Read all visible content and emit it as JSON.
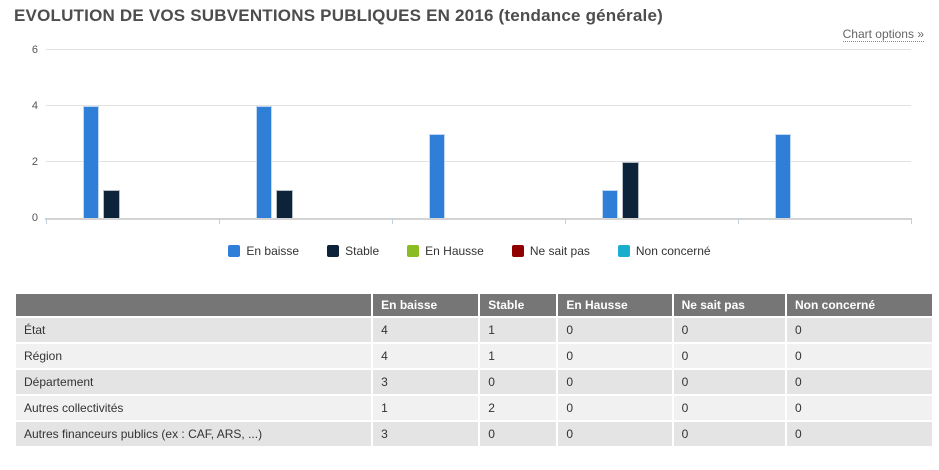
{
  "header": {
    "title": "EVOLUTION DE VOS SUBVENTIONS PUBLIQUES EN 2016 (tendance générale)",
    "chart_options_label": "Chart options »"
  },
  "colors": {
    "en_baisse": "#2f7ed8",
    "stable": "#0d233a",
    "en_hausse": "#8bbc21",
    "ne_sait_pas": "#910000",
    "non_concerne": "#1aadce",
    "table_header_bg": "#767676",
    "row_odd_bg": "#e4e4e4",
    "row_even_bg": "#f1f1f1"
  },
  "chart_data": {
    "type": "bar",
    "title": "EVOLUTION DE VOS SUBVENTIONS PUBLIQUES EN 2016 (tendance générale)",
    "categories": [
      "État",
      "Région",
      "Département",
      "Autres collectivités",
      "Autres financeurs publics (ex : CAF, ARS, ...)"
    ],
    "series": [
      {
        "name": "En baisse",
        "color": "#2f7ed8",
        "values": [
          4,
          4,
          3,
          1,
          3
        ]
      },
      {
        "name": "Stable",
        "color": "#0d233a",
        "values": [
          1,
          1,
          0,
          2,
          0
        ]
      },
      {
        "name": "En Hausse",
        "color": "#8bbc21",
        "values": [
          0,
          0,
          0,
          0,
          0
        ]
      },
      {
        "name": "Ne sait pas",
        "color": "#910000",
        "values": [
          0,
          0,
          0,
          0,
          0
        ]
      },
      {
        "name": "Non concerné",
        "color": "#1aadce",
        "values": [
          0,
          0,
          0,
          0,
          0
        ]
      }
    ],
    "xlabel": "",
    "ylabel": "",
    "ylim": [
      0,
      6
    ],
    "yticks": [
      0,
      2,
      4,
      6
    ],
    "grid": true,
    "x_tick_labels_visible": false,
    "legend_position": "bottom"
  },
  "table": {
    "columns": [
      "",
      "En baisse",
      "Stable",
      "En Hausse",
      "Ne sait pas",
      "Non concerné"
    ],
    "rows": [
      {
        "label": "État",
        "values": [
          4,
          1,
          0,
          0,
          0
        ]
      },
      {
        "label": "Région",
        "values": [
          4,
          1,
          0,
          0,
          0
        ]
      },
      {
        "label": "Département",
        "values": [
          3,
          0,
          0,
          0,
          0
        ]
      },
      {
        "label": "Autres collectivités",
        "values": [
          1,
          2,
          0,
          0,
          0
        ]
      },
      {
        "label": "Autres financeurs publics (ex : CAF, ARS, ...)",
        "values": [
          3,
          0,
          0,
          0,
          0
        ]
      }
    ]
  }
}
